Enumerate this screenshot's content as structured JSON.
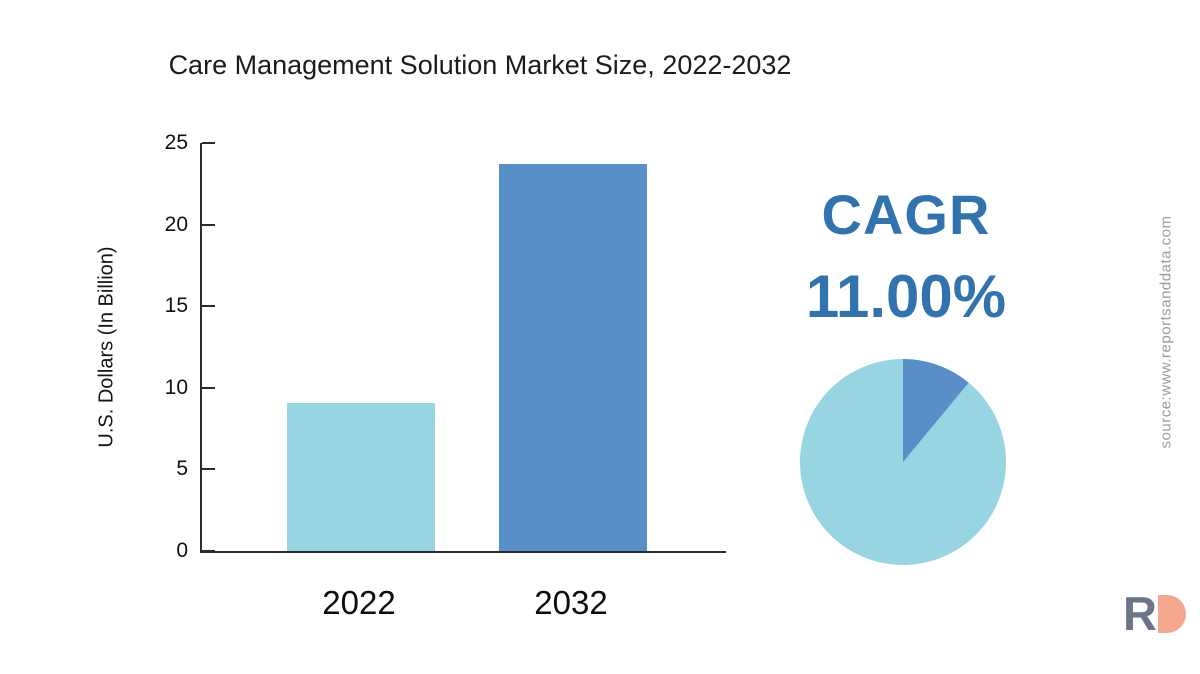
{
  "title": "Care Management Solution Market Size, 2022-2032",
  "chart_data": [
    {
      "type": "bar",
      "title": "Care Management Solution Market Size, 2022-2032",
      "categories": [
        "2022",
        "2032"
      ],
      "values": [
        9.1,
        23.7
      ],
      "bar_colors": [
        "#97d5e3",
        "#588fc8"
      ],
      "xlabel": "",
      "ylabel": "U.S. Dollars (In Billion)",
      "ylim": [
        0,
        25
      ],
      "yticks": [
        0,
        5,
        10,
        15,
        20,
        25
      ],
      "grid": false,
      "legend": "none"
    },
    {
      "type": "pie",
      "slices": [
        {
          "value": 11,
          "color": "#588fc8"
        },
        {
          "value": 89,
          "color": "#97d5e3"
        }
      ],
      "start_angle_deg": 0,
      "direction": "clockwise"
    }
  ],
  "cagr": {
    "label": "CAGR",
    "value": "11.00%",
    "color": "#3173ae"
  },
  "source": {
    "text": "source:www.reportsanddata.com"
  },
  "logo": {
    "letter": "R",
    "letter_color": "#6b7586",
    "d_color": "#f4a78e"
  },
  "colors": {
    "axis": "#2b2b2b",
    "background": "#ffffff"
  }
}
